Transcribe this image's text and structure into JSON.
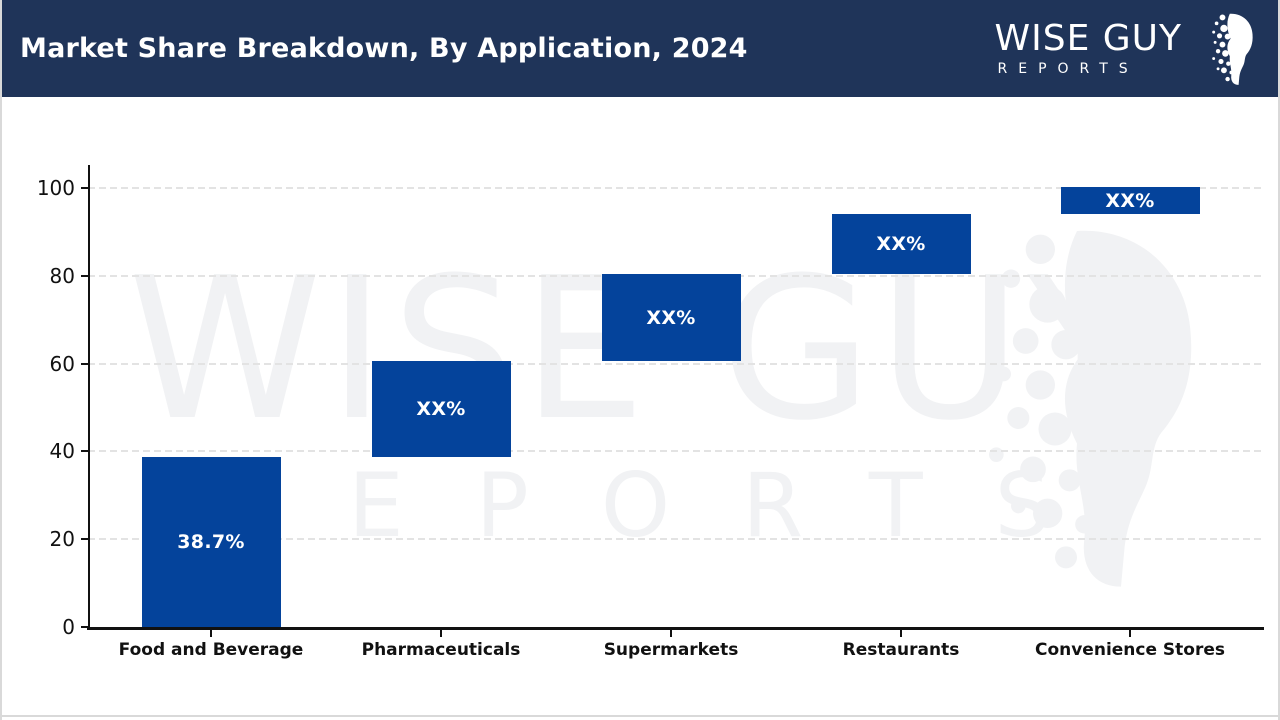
{
  "header": {
    "title": "Market Share Breakdown, By Application, 2024",
    "background_color": "#1F3459",
    "text_color": "#FFFFFF",
    "logo": {
      "line1": "WISE GUY",
      "line2": "REPORTS"
    }
  },
  "watermark": {
    "line1": "WISE GUY",
    "line2": "REPORTS"
  },
  "chart_data": {
    "type": "bar",
    "variant": "waterfall",
    "title": "Market Share Breakdown, By Application, 2024",
    "categories": [
      "Food and Beverage",
      "Pharmaceuticals",
      "Supermarkets",
      "Restaurants",
      "Convenience Stores"
    ],
    "segments": [
      {
        "category": "Food and Beverage",
        "start": 0,
        "end": 38.7,
        "label": "38.7%"
      },
      {
        "category": "Pharmaceuticals",
        "start": 38.7,
        "end": 60.5,
        "label": "XX%"
      },
      {
        "category": "Supermarkets",
        "start": 60.5,
        "end": 80.3,
        "label": "XX%"
      },
      {
        "category": "Restaurants",
        "start": 80.3,
        "end": 94,
        "label": "XX%"
      },
      {
        "category": "Convenience Stores",
        "start": 94,
        "end": 100.3,
        "label": "XX%"
      }
    ],
    "yticks": [
      0,
      20,
      40,
      60,
      80,
      100
    ],
    "ylim": [
      0,
      105
    ],
    "xlabel": "",
    "ylabel": "",
    "legend": "none",
    "grid": "horizontal-dashed",
    "bar_color": "#04439B",
    "bar_label_color": "#FFFFFF",
    "axis_color": "#111111",
    "gridline_color": "#E3E3E3"
  }
}
